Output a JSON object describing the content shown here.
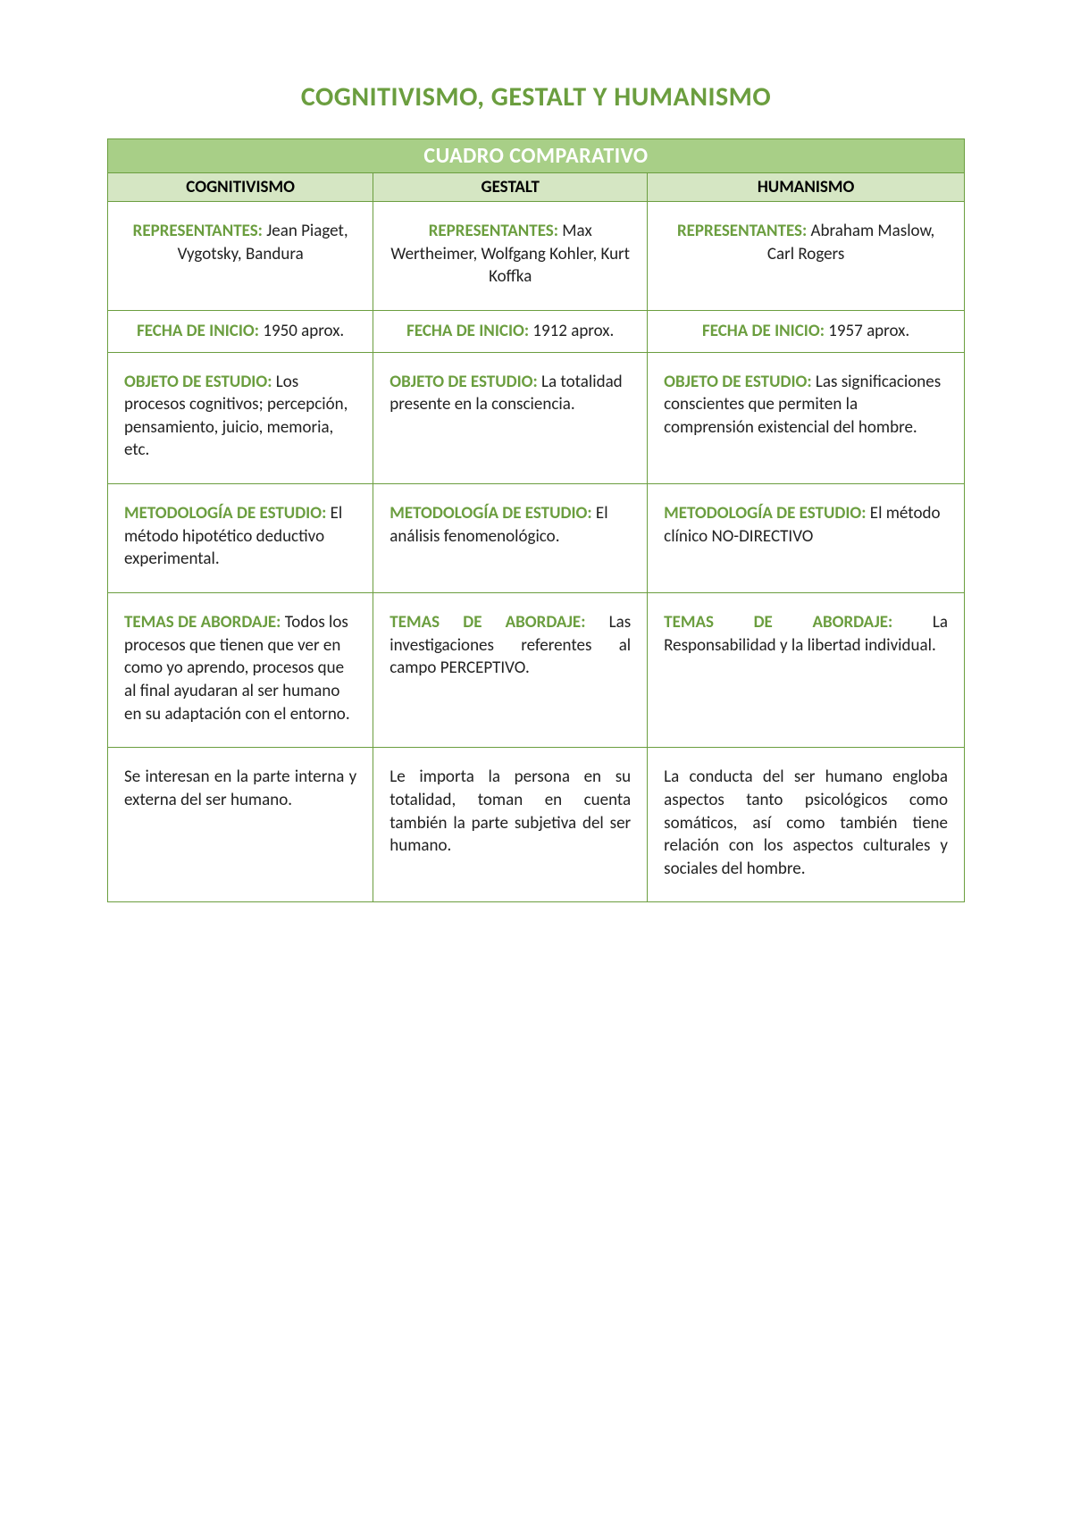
{
  "title": "COGNITIVISMO, GESTALT Y HUMANISMO",
  "colors": {
    "accent": "#6b9e3f",
    "title_band": "#a8cf87",
    "header_band": "#d5e6c3",
    "title_text": "#ffffff",
    "header_text": "#000000",
    "body_text": "#222222",
    "background": "#ffffff"
  },
  "typography": {
    "title_fontsize": 30,
    "table_title_fontsize": 24,
    "header_fontsize": 19,
    "cell_fontsize": 19,
    "font_family": "Calibri"
  },
  "table": {
    "type": "table",
    "title": "CUADRO COMPARATIVO",
    "columns": [
      "COGNITIVISMO",
      "GESTALT",
      "HUMANISMO"
    ],
    "column_widths_pct": [
      31,
      32,
      37
    ],
    "rows": [
      {
        "label": "REPRESENTANTES: ",
        "align": "center",
        "cells": [
          "Jean Piaget, Vygotsky, Bandura",
          "Max Wertheimer, Wolfgang Kohler, Kurt Koffka",
          "Abraham Maslow, Carl Rogers"
        ]
      },
      {
        "label": "FECHA DE INICIO: ",
        "align": "center",
        "cells": [
          "1950 aprox.",
          "1912 aprox.",
          "1957 aprox."
        ]
      },
      {
        "label": "OBJETO DE ESTUDIO: ",
        "align": "left",
        "cells": [
          "Los procesos cognitivos; percepción, pensamiento, juicio, memoria, etc.",
          "La totalidad presente en la consciencia.",
          "Las significaciones conscientes que permiten la comprensión existencial del hombre."
        ]
      },
      {
        "label": "METODOLOGÍA DE ESTUDIO: ",
        "align": "left",
        "cells": [
          "El método hipotético deductivo experimental.",
          "El análisis fenomenológico.",
          "El método clínico NO-DIRECTIVO"
        ]
      },
      {
        "label": "TEMAS DE ABORDAJE: ",
        "align": "justify",
        "cells": [
          "Todos los procesos que tienen que ver en como yo aprendo, procesos que al final ayudaran al ser humano en su adaptación con el entorno.",
          "Las investigaciones referentes al campo PERCEPTIVO.",
          "La Responsabilidad y la libertad individual."
        ]
      },
      {
        "label": "",
        "align": "justify",
        "cells": [
          "Se interesan en la parte interna y externa del ser humano.",
          "Le importa la persona en su totalidad, toman en cuenta también la parte subjetiva del ser humano.",
          "La conducta del ser humano engloba aspectos tanto psicológicos como somáticos, así como también tiene relación con los aspectos culturales y sociales del hombre."
        ]
      }
    ]
  }
}
